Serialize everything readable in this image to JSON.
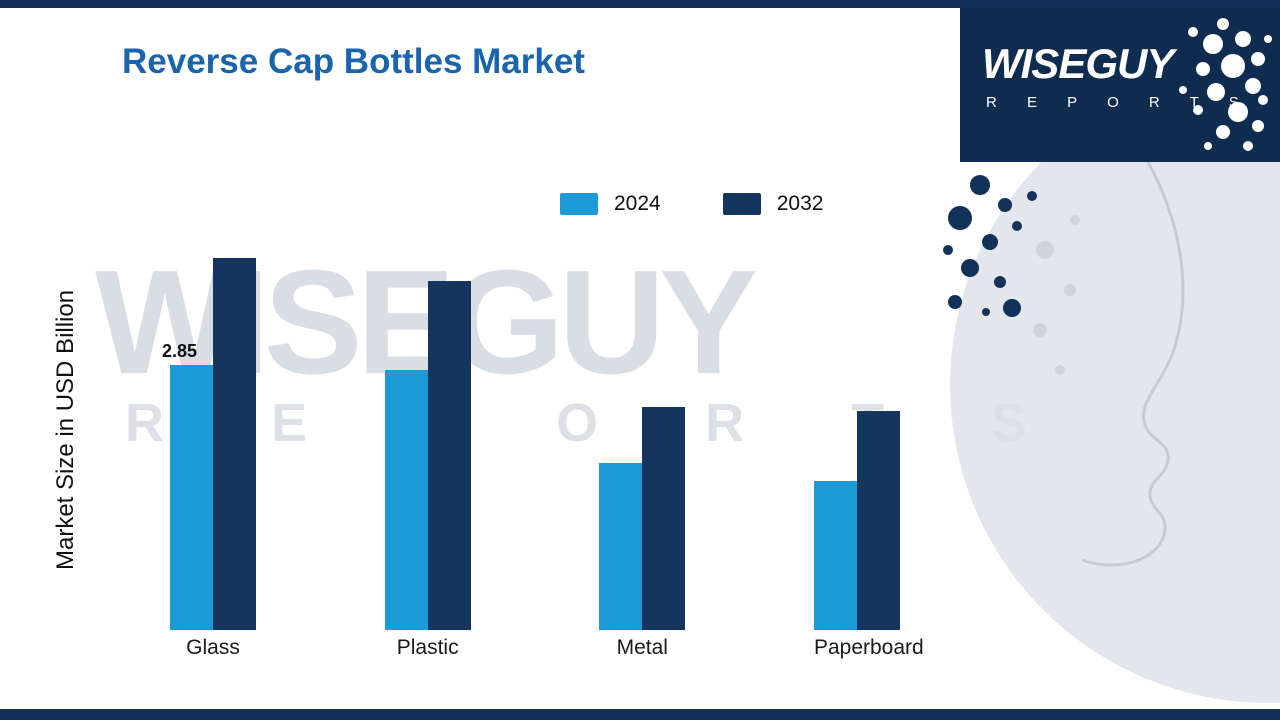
{
  "page": {
    "title": "Reverse Cap Bottles Market"
  },
  "logo": {
    "line1": "WISEGUY",
    "line2": "R E P O R T S"
  },
  "watermark": {
    "line1": "WISEGUY",
    "line2": "R E P O R T S"
  },
  "colors": {
    "series_2024": "#1b9ad6",
    "series_2032": "#16355e",
    "navy_panel": "#0e2b50",
    "title_blue": "#1a64ad",
    "watermark_gray": "#d9dde4",
    "face_gray": "#e3e7ed"
  },
  "chart_data": {
    "type": "bar",
    "title": "Reverse Cap Bottles Market",
    "xlabel": "",
    "ylabel": "Market Size in USD Billion",
    "categories": [
      "Glass",
      "Plastic",
      "Metal",
      "Paperboard"
    ],
    "series": [
      {
        "name": "2024",
        "color": "#1b9ad6",
        "values": [
          2.85,
          2.8,
          1.8,
          1.6
        ]
      },
      {
        "name": "2032",
        "color": "#16355e",
        "values": [
          4.0,
          3.75,
          2.4,
          2.35
        ]
      }
    ],
    "ylim": [
      0,
      4.3
    ],
    "grid": false,
    "legend_position": "top",
    "annotations": [
      {
        "series": "2024",
        "category": "Glass",
        "text": "2.85"
      }
    ]
  }
}
